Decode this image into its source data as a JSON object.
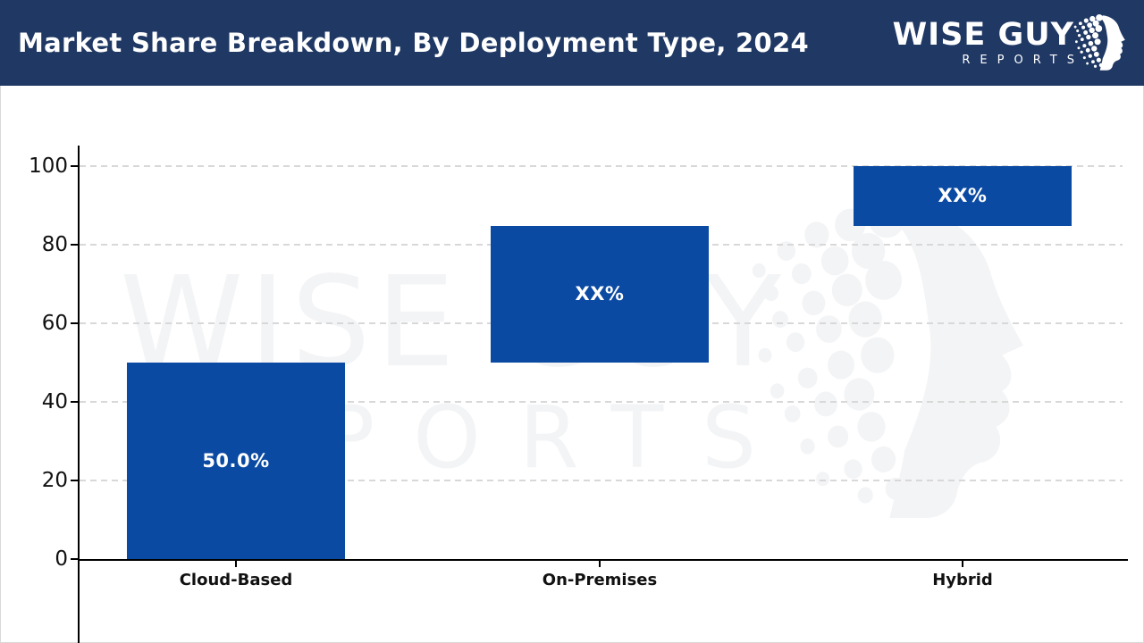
{
  "header": {
    "title": "Market Share Breakdown, By Deployment Type, 2024",
    "logo": {
      "wordmark": "WISE GUY",
      "subtext": "REPORTS",
      "face_icon": "dotted-head-profile-icon"
    }
  },
  "watermark": {
    "wordmark": "WISE GUY",
    "subtext": "REPORTS",
    "face_icon": "dotted-head-profile-icon"
  },
  "chart_data": {
    "type": "bar",
    "subtype": "waterfall",
    "title": "Market Share Breakdown, By Deployment Type, 2024",
    "categories": [
      "Cloud-Based",
      "On-Premises",
      "Hybrid"
    ],
    "segments": [
      {
        "category": "Cloud-Based",
        "start": 0,
        "end": 50.0,
        "label": "50.0%"
      },
      {
        "category": "On-Premises",
        "start": 50.0,
        "end": 84.8,
        "label": "XX%"
      },
      {
        "category": "Hybrid",
        "start": 84.8,
        "end": 100.0,
        "label": "XX%"
      }
    ],
    "yticks": [
      0,
      20,
      40,
      60,
      80,
      100
    ],
    "ylim": [
      0,
      105
    ],
    "xlabel": "",
    "ylabel": "",
    "grid": "horizontal-dashed",
    "legend": "none",
    "bar_color": "#0b4aa2",
    "value_label_color": "#ffffff"
  },
  "colors": {
    "header_bg": "#1f3864",
    "bar": "#0b4aa2",
    "grid": "#d8d8d8",
    "axis": "#000000",
    "watermark": "#f3f4f6",
    "border": "#d9d9d9"
  }
}
